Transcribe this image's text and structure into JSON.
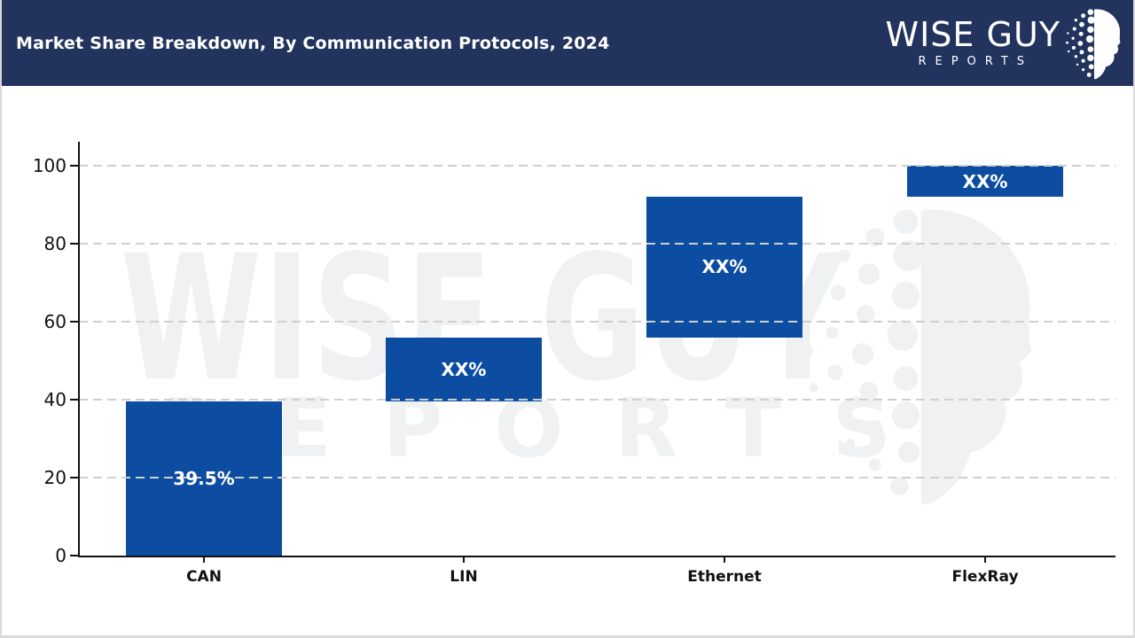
{
  "header": {
    "title": "Market Share Breakdown, By Communication Protocols, 2024",
    "background": "#22345e",
    "logo": {
      "wordmark": "WISE GUY",
      "subtext": "REPORTS"
    }
  },
  "watermark": {
    "wordmark": "WISE GUY",
    "subtext": "REPORTS"
  },
  "chart_data": {
    "type": "bar",
    "subtype": "waterfall-segments",
    "title": "Market Share Breakdown, By Communication Protocols, 2024",
    "categories": [
      "CAN",
      "LIN",
      "Ethernet",
      "FlexRay"
    ],
    "series": [
      {
        "name": "Market share (%)",
        "segments": [
          {
            "category": "CAN",
            "start": 0,
            "end": 39.5,
            "label": "39.5%"
          },
          {
            "category": "LIN",
            "start": 39.5,
            "end": 56,
            "label": "XX%"
          },
          {
            "category": "Ethernet",
            "start": 56,
            "end": 92,
            "label": "XX%"
          },
          {
            "category": "FlexRay",
            "start": 92,
            "end": 100,
            "label": "XX%"
          }
        ]
      }
    ],
    "ylim": [
      0,
      105
    ],
    "yticks": [
      0,
      20,
      40,
      60,
      80,
      100
    ],
    "xlabel": "",
    "ylabel": "",
    "grid": "horizontal-dashed",
    "legend": "none",
    "bar_color": "#0c4da2",
    "value_label_color": "#ffffff",
    "gridline_color": "#cfcfcf",
    "axis_color": "#111111"
  }
}
